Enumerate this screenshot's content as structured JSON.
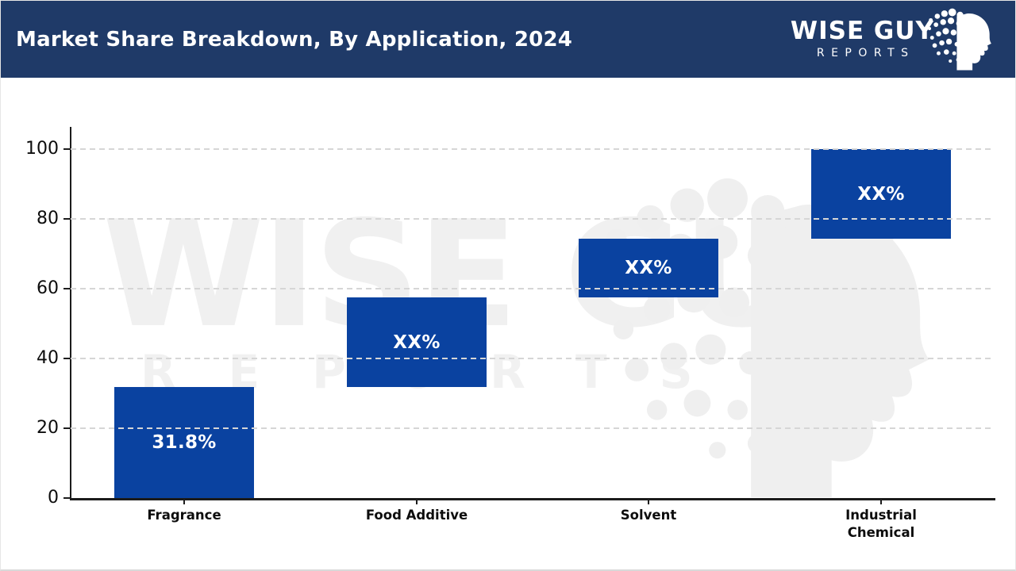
{
  "header": {
    "title": "Market Share Breakdown, By Application, 2024",
    "bg_color": "#1f3a68",
    "logo": {
      "line1": "WISE GUY",
      "line2": "REPORTS"
    }
  },
  "watermark": {
    "line1": "WISE GUY",
    "line2": "REPORTS"
  },
  "chart_data": {
    "type": "bar",
    "subtype": "waterfall",
    "title": "Market Share Breakdown, By Application, 2024",
    "categories": [
      "Fragrance",
      "Food Additive",
      "Solvent",
      "Industrial Chemical"
    ],
    "segments": [
      {
        "category": "Fragrance",
        "start": 0,
        "end": 31.8,
        "label": "31.8%"
      },
      {
        "category": "Food Additive",
        "start": 31.8,
        "end": 57.4,
        "label": "XX%"
      },
      {
        "category": "Solvent",
        "start": 57.4,
        "end": 74.3,
        "label": "XX%"
      },
      {
        "category": "Industrial Chemical",
        "start": 74.3,
        "end": 100,
        "label": "XX%"
      }
    ],
    "xlabel": "",
    "ylabel": "",
    "ylim": [
      0,
      100
    ],
    "yticks": [
      0,
      20,
      40,
      60,
      80,
      100
    ],
    "grid": "horizontal-dashed",
    "legend": "none",
    "bar_color": "#0a42a0",
    "bar_label_color": "#ffffff",
    "axis_color": "#1c1c1c",
    "grid_color": "#d6d6d6"
  }
}
